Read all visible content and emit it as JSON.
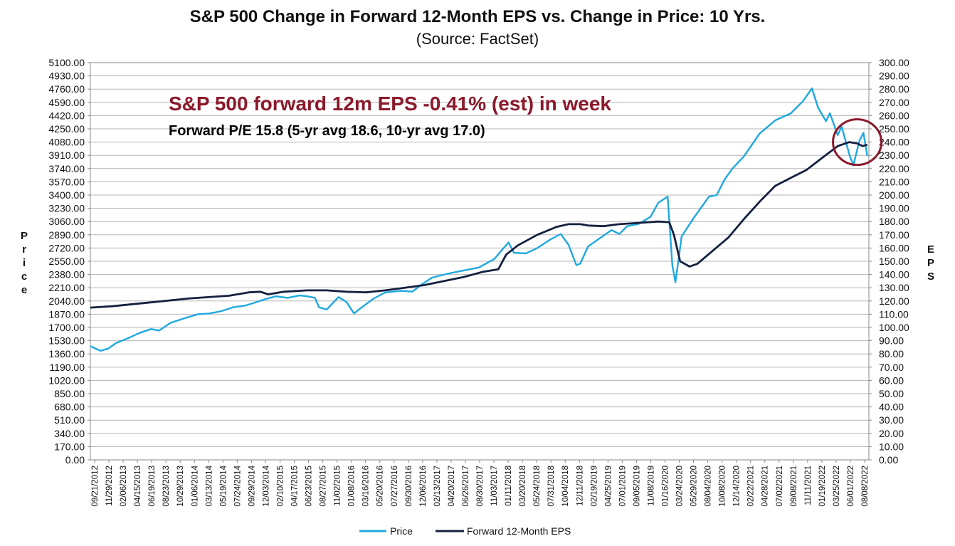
{
  "chart_data": {
    "type": "line",
    "title": "S&P 500 Change in Forward 12-Month EPS vs. Change in Price: 10 Yrs.",
    "subtitle": "(Source: FactSet)",
    "ylabel_left": "Price",
    "ylabel_right": "EPS",
    "ylim_left": [
      0,
      5100
    ],
    "ylim_right": [
      0,
      300
    ],
    "yticks_left": [
      "5100.00",
      "4930.00",
      "4760.00",
      "4590.00",
      "4420.00",
      "4250.00",
      "4080.00",
      "3910.00",
      "3740.00",
      "3570.00",
      "3400.00",
      "3230.00",
      "3060.00",
      "2890.00",
      "2720.00",
      "2550.00",
      "2380.00",
      "2210.00",
      "2040.00",
      "1870.00",
      "1700.00",
      "1530.00",
      "1360.00",
      "1190.00",
      "1020.00",
      "850.00",
      "680.00",
      "510.00",
      "340.00",
      "170.00",
      "0.00"
    ],
    "yticks_right": [
      "300.00",
      "290.00",
      "280.00",
      "270.00",
      "260.00",
      "250.00",
      "240.00",
      "230.00",
      "220.00",
      "210.00",
      "200.00",
      "190.00",
      "180.00",
      "170.00",
      "160.00",
      "150.00",
      "140.00",
      "130.00",
      "120.00",
      "110.00",
      "100.00",
      "90.00",
      "80.00",
      "70.00",
      "60.00",
      "50.00",
      "40.00",
      "30.00",
      "20.00",
      "10.00",
      "0.00"
    ],
    "x_range": [
      2012.72,
      2022.7
    ],
    "x_tick_labels": [
      "09/21/2012",
      "11/29/2012",
      "02/06/2013",
      "04/15/2013",
      "06/19/2013",
      "08/23/2013",
      "10/29/2013",
      "01/06/2014",
      "03/13/2014",
      "05/19/2014",
      "07/24/2014",
      "09/29/2014",
      "12/03/2014",
      "02/10/2015",
      "04/17/2015",
      "06/23/2015",
      "08/27/2015",
      "11/02/2015",
      "01/08/2016",
      "03/16/2016",
      "05/20/2016",
      "07/27/2016",
      "09/30/2016",
      "12/06/2016",
      "02/13/2017",
      "04/20/2017",
      "06/26/2017",
      "08/30/2017",
      "11/03/2017",
      "01/11/2018",
      "03/20/2018",
      "05/24/2018",
      "07/31/2018",
      "10/04/2018",
      "12/11/2018",
      "02/19/2019",
      "04/25/2019",
      "07/01/2019",
      "09/05/2019",
      "11/08/2019",
      "01/16/2020",
      "03/24/2020",
      "05/29/2020",
      "08/04/2020",
      "10/08/2020",
      "12/14/2020",
      "02/22/2021",
      "04/28/2021",
      "07/02/2021",
      "09/08/2021",
      "11/11/2021",
      "01/19/2022",
      "03/25/2022",
      "06/01/2022",
      "08/08/2022"
    ],
    "annotations": [
      {
        "text": "S&P 500 forward 12m EPS -0.41% (est) in week",
        "color": "#8b1a2b"
      },
      {
        "text": "Forward P/E 15.8 (5-yr avg 18.6, 10-yr avg 17.0)",
        "color": "#000000"
      }
    ],
    "highlight_circle": {
      "x": 2022.55,
      "y_right": 240
    },
    "legend_position": "bottom-center",
    "series": [
      {
        "name": "Price",
        "axis": "left",
        "color": "#1fa8e0",
        "x": [
          2012.72,
          2012.85,
          2012.95,
          2013.05,
          2013.2,
          2013.35,
          2013.5,
          2013.6,
          2013.75,
          2013.9,
          2014.0,
          2014.1,
          2014.25,
          2014.4,
          2014.55,
          2014.7,
          2014.8,
          2014.95,
          2015.1,
          2015.25,
          2015.4,
          2015.5,
          2015.6,
          2015.65,
          2015.75,
          2015.9,
          2016.0,
          2016.1,
          2016.2,
          2016.35,
          2016.5,
          2016.7,
          2016.85,
          2016.95,
          2017.1,
          2017.3,
          2017.5,
          2017.7,
          2017.9,
          2018.0,
          2018.08,
          2018.15,
          2018.3,
          2018.45,
          2018.6,
          2018.75,
          2018.85,
          2018.95,
          2019.0,
          2019.1,
          2019.3,
          2019.4,
          2019.5,
          2019.6,
          2019.75,
          2019.9,
          2020.0,
          2020.12,
          2020.18,
          2020.22,
          2020.3,
          2020.45,
          2020.55,
          2020.65,
          2020.75,
          2020.85,
          2020.95,
          2021.1,
          2021.3,
          2021.5,
          2021.7,
          2021.85,
          2021.97,
          2022.05,
          2022.15,
          2022.2,
          2022.3,
          2022.35,
          2022.45,
          2022.5,
          2022.58,
          2022.63,
          2022.68
        ],
        "values": [
          1460,
          1400,
          1430,
          1500,
          1560,
          1630,
          1680,
          1660,
          1760,
          1810,
          1840,
          1870,
          1880,
          1910,
          1960,
          1980,
          2010,
          2060,
          2100,
          2080,
          2110,
          2100,
          2080,
          1960,
          1930,
          2090,
          2030,
          1880,
          1960,
          2070,
          2150,
          2170,
          2160,
          2240,
          2340,
          2390,
          2430,
          2470,
          2580,
          2700,
          2790,
          2660,
          2650,
          2720,
          2820,
          2900,
          2760,
          2500,
          2520,
          2740,
          2880,
          2950,
          2900,
          3000,
          3030,
          3120,
          3300,
          3380,
          2500,
          2280,
          2870,
          3100,
          3240,
          3380,
          3400,
          3600,
          3740,
          3900,
          4190,
          4360,
          4450,
          4600,
          4770,
          4520,
          4350,
          4450,
          4170,
          4280,
          3920,
          3780,
          4100,
          4200,
          3900
        ]
      },
      {
        "name": "Forward 12-Month EPS",
        "axis": "right",
        "color": "#14203f",
        "x": [
          2012.72,
          2013.0,
          2013.5,
          2014.0,
          2014.5,
          2014.75,
          2014.9,
          2015.0,
          2015.2,
          2015.5,
          2015.75,
          2016.0,
          2016.25,
          2016.5,
          2016.75,
          2017.0,
          2017.25,
          2017.5,
          2017.75,
          2017.95,
          2018.05,
          2018.2,
          2018.45,
          2018.7,
          2018.85,
          2019.0,
          2019.1,
          2019.3,
          2019.5,
          2019.75,
          2020.0,
          2020.14,
          2020.2,
          2020.28,
          2020.4,
          2020.5,
          2020.7,
          2020.9,
          2021.1,
          2021.3,
          2021.5,
          2021.7,
          2021.9,
          2022.1,
          2022.3,
          2022.45,
          2022.55,
          2022.62,
          2022.68
        ],
        "values": [
          115,
          116,
          119,
          122,
          124,
          126.5,
          127,
          125,
          127,
          128,
          128,
          127,
          126.5,
          128,
          130,
          132,
          135,
          138,
          142,
          144,
          155,
          162,
          170,
          176,
          178,
          178,
          177,
          176.5,
          178,
          179,
          180,
          179.5,
          170,
          150,
          146,
          148,
          158,
          168,
          182,
          195,
          207,
          213,
          219,
          228,
          237,
          240,
          239,
          237,
          238
        ]
      }
    ]
  }
}
